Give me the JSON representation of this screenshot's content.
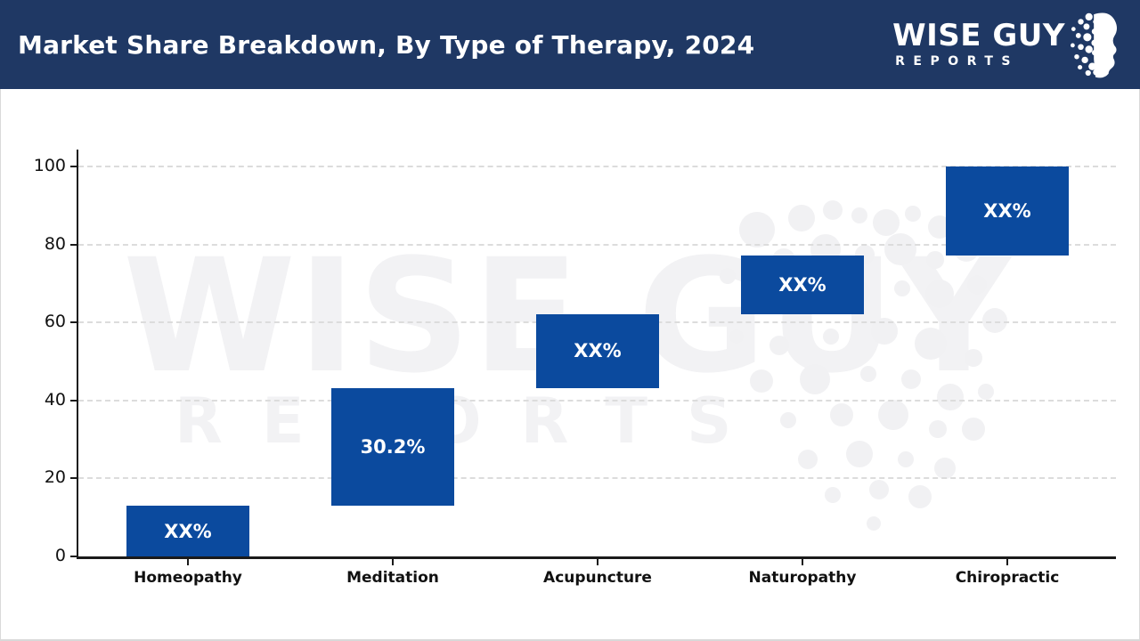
{
  "header": {
    "title": "Market Share Breakdown, By Type of Therapy, 2024",
    "logo": {
      "primary": "WISE GUY",
      "secondary": "REPORTS"
    }
  },
  "watermark": {
    "primary": "WISE GUY",
    "secondary": "REPORTS"
  },
  "chart_data": {
    "type": "bar",
    "variant": "floating-waterfall",
    "title": "Market Share Breakdown, By Type of Therapy, 2024",
    "categories": [
      "Homeopathy",
      "Meditation",
      "Acupuncture",
      "Naturopathy",
      "Chiropractic"
    ],
    "series": [
      {
        "category": "Homeopathy",
        "start": 0,
        "end": 13,
        "label": "XX%"
      },
      {
        "category": "Meditation",
        "start": 13,
        "end": 43.2,
        "label": "30.2%"
      },
      {
        "category": "Acupuncture",
        "start": 43.2,
        "end": 62.2,
        "label": "XX%"
      },
      {
        "category": "Naturopathy",
        "start": 62.2,
        "end": 77.2,
        "label": "XX%"
      },
      {
        "category": "Chiropractic",
        "start": 77.2,
        "end": 100,
        "label": "XX%"
      }
    ],
    "xlabel": "",
    "ylabel": "",
    "yticks": [
      0,
      20,
      40,
      60,
      80,
      100
    ],
    "ylim": [
      0,
      106
    ],
    "grid": "horizontal-dashed",
    "legend": "none",
    "bar_color": "#0B4A9E",
    "bar_label_color": "#FFFFFF"
  },
  "colors": {
    "header_bg": "#1F3864",
    "bar": "#0B4A9E",
    "grid": "#DCDCDC",
    "axis": "#1A1A1A",
    "watermark": "#F2F2F4",
    "page_border": "#D9D9D9"
  }
}
